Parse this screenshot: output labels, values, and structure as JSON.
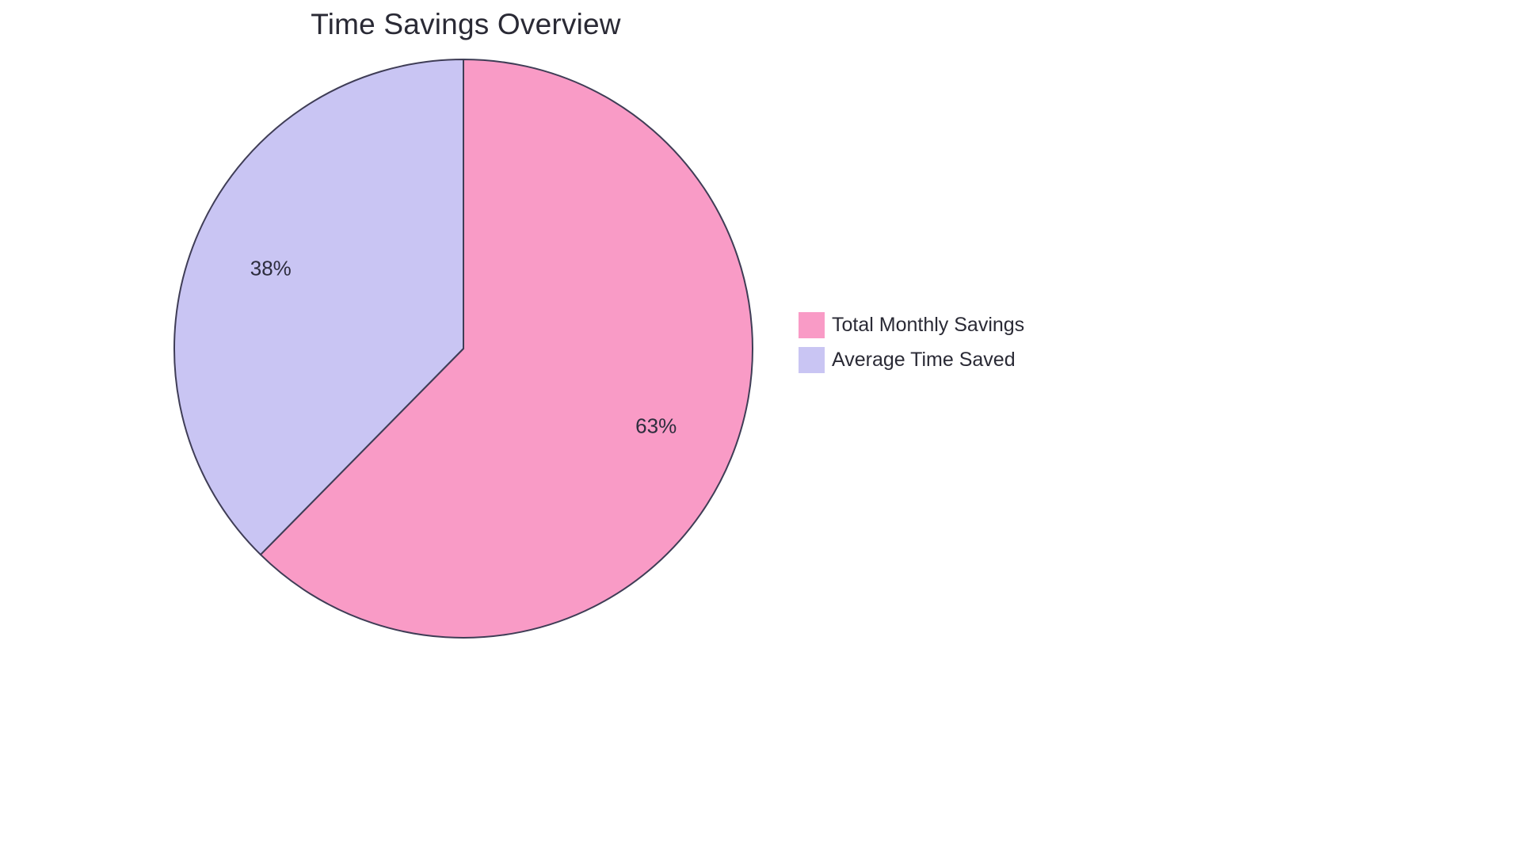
{
  "chart_data": {
    "type": "pie",
    "title": "Time Savings Overview",
    "slices": [
      {
        "label": "Total Monthly Savings",
        "value": 63,
        "percent_label": "63%",
        "color": "#F99BC6"
      },
      {
        "label": "Average Time Saved",
        "value": 38,
        "percent_label": "38%",
        "color": "#C9C5F3"
      }
    ],
    "start_angle_deg": 0,
    "direction": "clockwise",
    "outline_color": "#3F3D56",
    "label_color": "#2D2D3D",
    "legend_position": "right",
    "background_color": "#FFFFFF"
  }
}
